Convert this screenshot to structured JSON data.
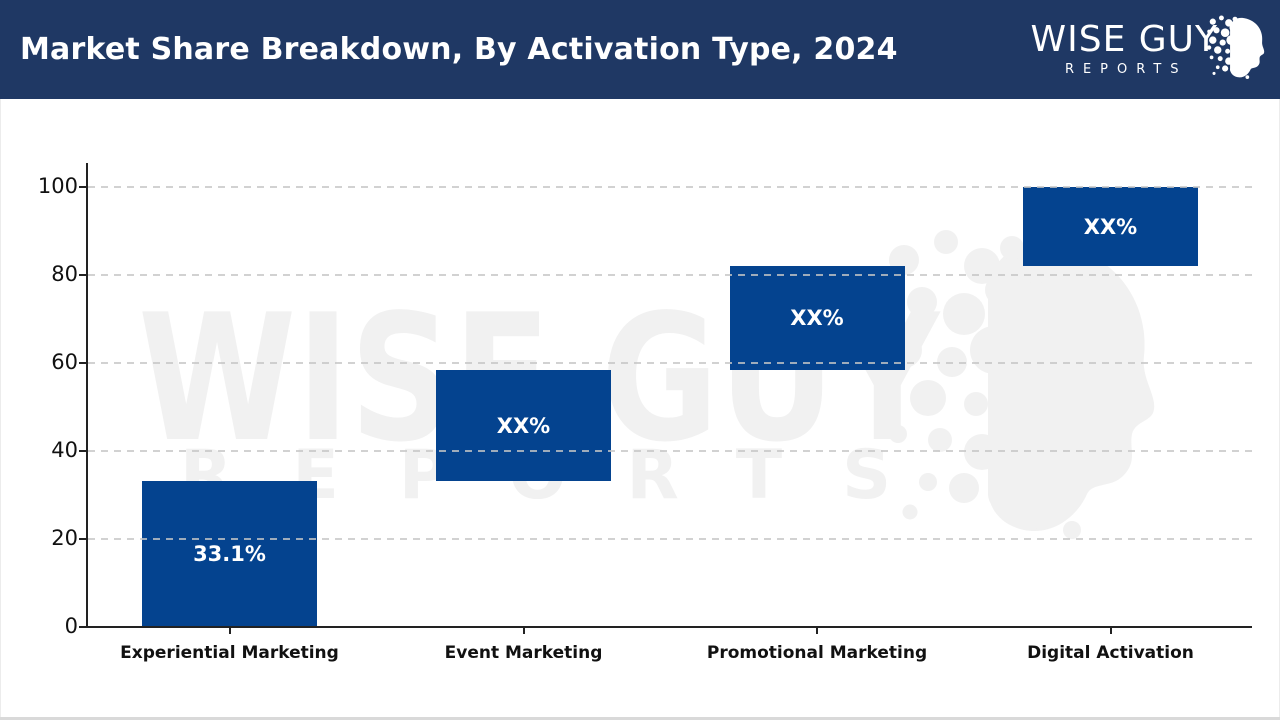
{
  "header": {
    "title": "Market Share Breakdown, By Activation Type, 2024",
    "brand": {
      "line1": "WISE GUY",
      "line2": "REPORTS"
    }
  },
  "watermark": {
    "line1": "WISE GUY",
    "line2": "REPORTS"
  },
  "colors": {
    "header_bg": "#1f3864",
    "bar_fill": "#04438f",
    "bar_label": "#ffffff",
    "axis": "#222222",
    "grid": "#c6c6c6",
    "watermark": "#f1f1f1",
    "tick_text": "#111111"
  },
  "chart_data": {
    "type": "bar",
    "subtype": "waterfall",
    "title": "Market Share Breakdown, By Activation Type, 2024",
    "categories": [
      "Experiential Marketing",
      "Event Marketing",
      "Promotional Marketing",
      "Digital Activation"
    ],
    "segments": [
      {
        "category": "Experiential Marketing",
        "start": 0,
        "end": 33.1,
        "label": "33.1%"
      },
      {
        "category": "Event Marketing",
        "start": 33.1,
        "end": 58.3,
        "label": "XX%"
      },
      {
        "category": "Promotional Marketing",
        "start": 58.3,
        "end": 82.0,
        "label": "XX%"
      },
      {
        "category": "Digital Activation",
        "start": 82.0,
        "end": 100,
        "label": "XX%"
      }
    ],
    "yticks": [
      0,
      20,
      40,
      60,
      80,
      100
    ],
    "ylim": [
      0,
      105
    ],
    "xlabel": "",
    "ylabel": "",
    "grid": "horizontal dashed, drawn above bars",
    "legend": "none",
    "bar_color": "#04438f",
    "value_label_color": "#ffffff"
  }
}
